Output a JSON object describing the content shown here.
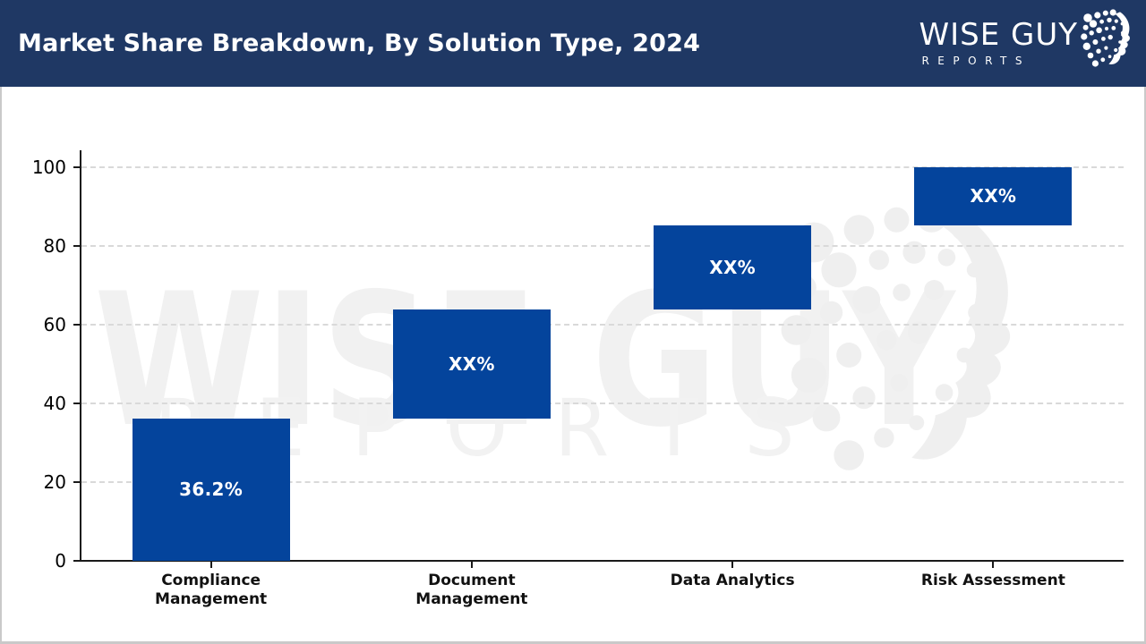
{
  "header": {
    "title": "Market Share Breakdown, By Solution Type, 2024",
    "logo": {
      "line1": "WISE GUY",
      "line2": "REPORTS"
    },
    "bg_color": "#1f3864",
    "text_color": "#ffffff"
  },
  "watermark": {
    "line1": "WISE GUY",
    "line2": "REPORTS"
  },
  "chart_data": {
    "type": "bar",
    "subtype": "waterfall",
    "title": "Market Share Breakdown, By Solution Type, 2024",
    "categories": [
      "Compliance Management",
      "Document Management",
      "Data Analytics",
      "Risk Assessment"
    ],
    "category_lines": [
      [
        "Compliance",
        "Management"
      ],
      [
        "Document",
        "Management"
      ],
      [
        "Data Analytics"
      ],
      [
        "Risk Assessment"
      ]
    ],
    "segments": [
      {
        "category": "Compliance Management",
        "start": 0,
        "end": 36.2,
        "label": "36.2%"
      },
      {
        "category": "Document Management",
        "start": 36.2,
        "end": 63.8,
        "label": "XX%"
      },
      {
        "category": "Data Analytics",
        "start": 63.8,
        "end": 85.1,
        "label": "XX%"
      },
      {
        "category": "Risk Assessment",
        "start": 85.1,
        "end": 100,
        "label": "XX%"
      }
    ],
    "y_ticks": [
      0,
      20,
      40,
      60,
      80,
      100
    ],
    "ylim": [
      0,
      104
    ],
    "xlabel": "",
    "ylabel": "",
    "legend": "none",
    "grid": "horizontal-dashed",
    "bar_color": "#04449c",
    "bar_label_color": "#ffffff",
    "axis_color": "#1a1a1a",
    "gridline_color": "#d9d9d9"
  }
}
